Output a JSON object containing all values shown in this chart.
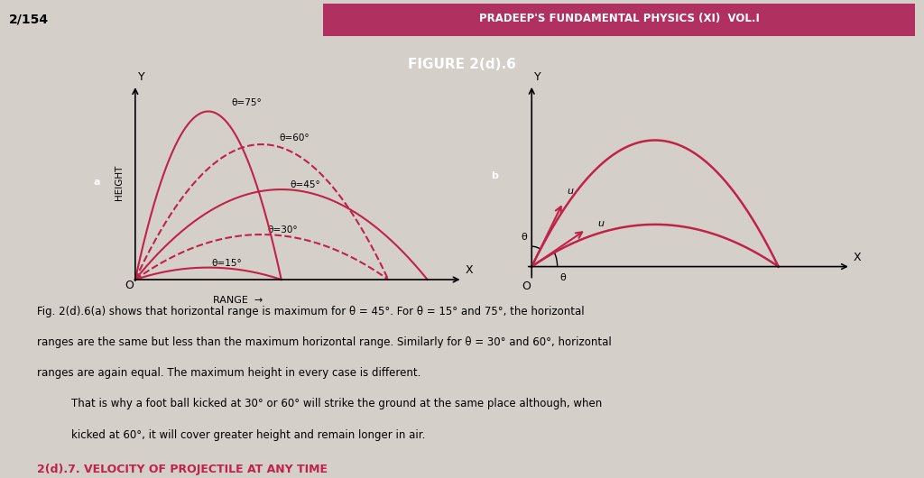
{
  "title": "FIGURE 2(d).6",
  "header_left": "2/154",
  "header_right": "PRADEEP'S FUNDAMENTAL PHYSICS (XI)  VOL.I",
  "bg_color": "#d4cfc9",
  "panel_bg": "#e8e4df",
  "title_bg": "#2a2a2a",
  "title_color": "#ffffff",
  "curve_color": "#c0224a",
  "angles": [
    15,
    30,
    45,
    60,
    75
  ],
  "angle_styles": [
    "solid",
    "dashed",
    "solid",
    "dashed",
    "solid"
  ],
  "ylabel_a": "HEIGHT",
  "xlabel_a": "RANGE",
  "footer_line1": "Fig. 2(d).6(a) shows that horizontal range is maximum for θ = 45°. For θ = 15° and 75°, the horizontal",
  "footer_line2": "ranges are the same but less than the maximum horizontal range. Similarly for θ = 30° and 60°, horizontal",
  "footer_line3": "ranges are again equal. The maximum height in every case is different.",
  "footer_line4": "That is why a foot ball kicked at 30° or 60° will strike the ground at the same place although, when",
  "footer_line5": "kicked at 60°, it will cover greater height and remain longer in air.",
  "footer_last": "2(d).7. VELOCITY OF PROJECTILE AT ANY TIME",
  "section_color": "#c0224a",
  "header_bar_color": "#b03060",
  "circle_color": "#555555"
}
